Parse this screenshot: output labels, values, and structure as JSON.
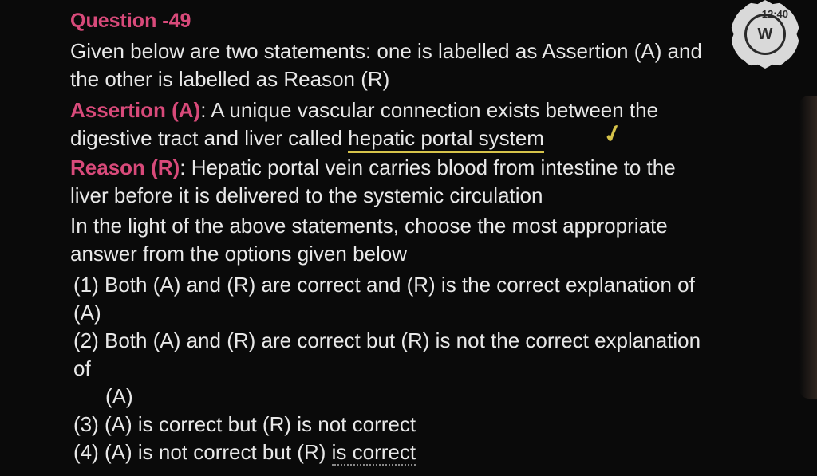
{
  "colors": {
    "background": "#0a0a0a",
    "heading": "#d84a7a",
    "body_text": "#e8e8e8",
    "underline": "#d6c34a",
    "badge_bg": "#d9d9d9",
    "badge_fg": "#2a2a2a"
  },
  "typography": {
    "title_fontsize": 25,
    "body_fontsize": 26,
    "font_family": "Arial, sans-serif",
    "line_height": 1.35
  },
  "badge": {
    "time": "12:40",
    "glyph": "W"
  },
  "question": {
    "title": "Question -49",
    "intro": "Given below are two statements: one is labelled as Assertion (A) and the other is labelled as Reason (R)",
    "assertion_label": "Assertion (A)",
    "assertion_text_pre": ": A unique vascular connection exists between the digestive tract and liver called ",
    "assertion_underlined": "hepatic portal system",
    "reason_label": "Reason (R)",
    "reason_text": ": Hepatic portal vein carries blood from intestine to the liver before it is delivered to the systemic circulation",
    "instruction": "In the light of the above statements, choose the most appropriate answer from the options given below",
    "options": [
      "(1) Both (A) and (R) are correct and (R) is the correct explanation of (A)",
      "(2) Both (A) and (R) are correct but (R) is not the correct explanation of",
      "(A)",
      "(3) (A) is correct but (R) is not correct",
      "(4) (A) is not correct but (R) is correct"
    ],
    "option4_underlined_phrase": "is correct"
  }
}
